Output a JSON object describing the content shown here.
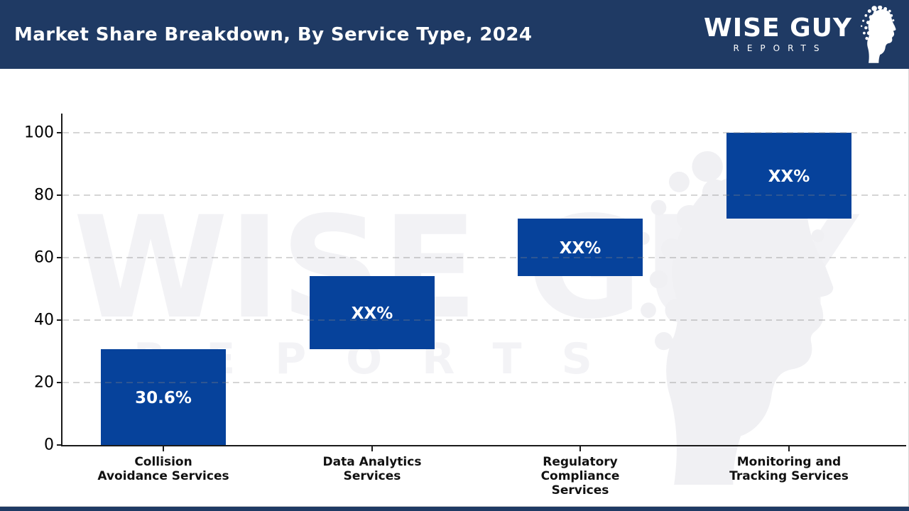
{
  "header": {
    "title": "Market Share Breakdown, By Service Type, 2024",
    "logo": {
      "line1": "WISE GUY",
      "line2": "REPORTS"
    }
  },
  "watermark": {
    "line1": "WISE GUY",
    "line2": "REPORTS"
  },
  "chart_data": {
    "type": "bar",
    "subtype": "waterfall",
    "title": "Market Share Breakdown, By Service Type, 2024",
    "categories": [
      [
        "Collision",
        "Avoidance Services"
      ],
      [
        "Data Analytics",
        "Services"
      ],
      [
        "Regulatory",
        "Compliance",
        "Services"
      ],
      [
        "Monitoring and",
        "Tracking Services"
      ]
    ],
    "segments": [
      {
        "start": 0,
        "end": 30.6,
        "label": "30.6%"
      },
      {
        "start": 30.6,
        "end": 54,
        "label": "XX%"
      },
      {
        "start": 54,
        "end": 72.5,
        "label": "XX%"
      },
      {
        "start": 72.5,
        "end": 100,
        "label": "XX%"
      }
    ],
    "yticks": [
      0,
      20,
      40,
      60,
      80,
      100
    ],
    "ylim": [
      0,
      107
    ],
    "grid": "horizontal dashed",
    "legend_position": "none",
    "bar_color": "#06429b",
    "bar_label_color": "#ffffff"
  },
  "colors": {
    "header_bg": "#1f3a64",
    "bar": "#06429b",
    "watermark": "#f2f2f5",
    "axis": "#1a1a1a"
  }
}
